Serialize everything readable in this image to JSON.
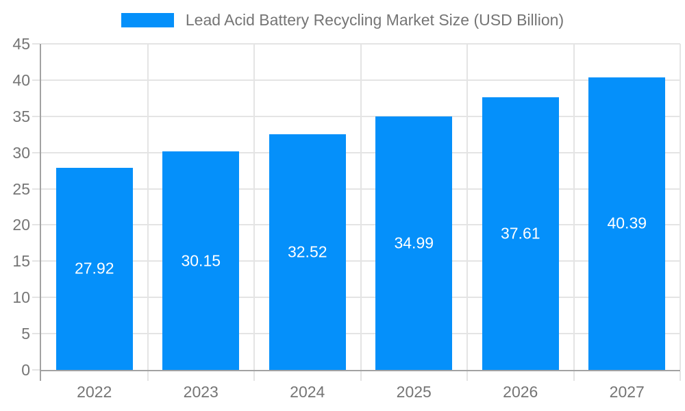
{
  "legend": {
    "label": "Lead Acid Battery Recycling Market Size (USD Billion)"
  },
  "chart_data": {
    "type": "bar",
    "title": "Lead Acid Battery Recycling Market Size (USD Billion)",
    "categories": [
      "2022",
      "2023",
      "2024",
      "2025",
      "2026",
      "2027"
    ],
    "values": [
      27.92,
      30.15,
      32.52,
      34.99,
      37.61,
      40.39
    ],
    "value_labels": [
      "27.92",
      "30.15",
      "32.52",
      "34.99",
      "37.61",
      "40.39"
    ],
    "xlabel": "",
    "ylabel": "",
    "ylim": [
      0,
      45
    ],
    "yticks": [
      0,
      5,
      10,
      15,
      20,
      25,
      30,
      35,
      40,
      45
    ],
    "grid": true,
    "legend_position": "top",
    "data_labels_inside_bars": true,
    "colors": {
      "bar": "#0590fa",
      "data_label": "#ffffff",
      "axis_text": "#757575",
      "axis_line": "#a2a2a2",
      "gridline": "#e4e4e4",
      "background": "#ffffff"
    }
  }
}
